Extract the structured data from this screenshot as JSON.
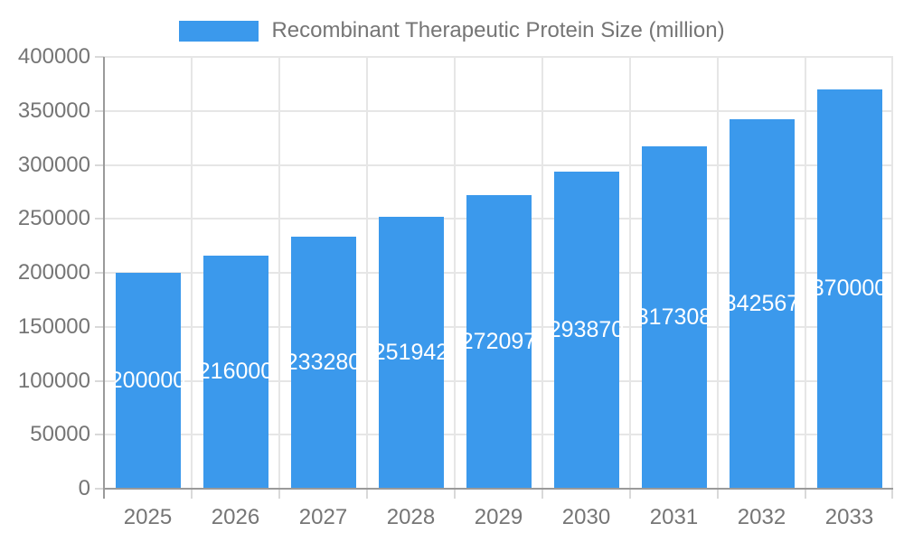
{
  "chart_data": {
    "type": "bar",
    "title": "Recombinant Therapeutic Protein Size (million)",
    "legend_position": "top",
    "categories": [
      "2025",
      "2026",
      "2027",
      "2028",
      "2029",
      "2030",
      "2031",
      "2032",
      "2033"
    ],
    "values": [
      200000,
      216000,
      233280,
      251942,
      272097,
      293870,
      317308,
      342567,
      370000
    ],
    "value_labels": [
      "200000",
      "216000",
      "233280",
      "251942",
      "272097",
      "293870",
      "317308",
      "342567",
      "370000"
    ],
    "xlabel": "",
    "ylabel": "",
    "ylim": [
      0,
      400000
    ],
    "yticks": [
      0,
      50000,
      100000,
      150000,
      200000,
      250000,
      300000,
      350000,
      400000
    ],
    "ytick_labels": [
      "0",
      "50000",
      "100000",
      "150000",
      "200000",
      "250000",
      "300000",
      "350000",
      "400000"
    ],
    "grid": true,
    "colors": {
      "bar": "#3B99EC",
      "value_label": "#FFFFFF",
      "text": "#757575",
      "gridline": "#E6E6E6",
      "axis_line": "#9A9A9A",
      "tick_mark": "#D9D9D9",
      "background": "#FFFFFF"
    }
  }
}
